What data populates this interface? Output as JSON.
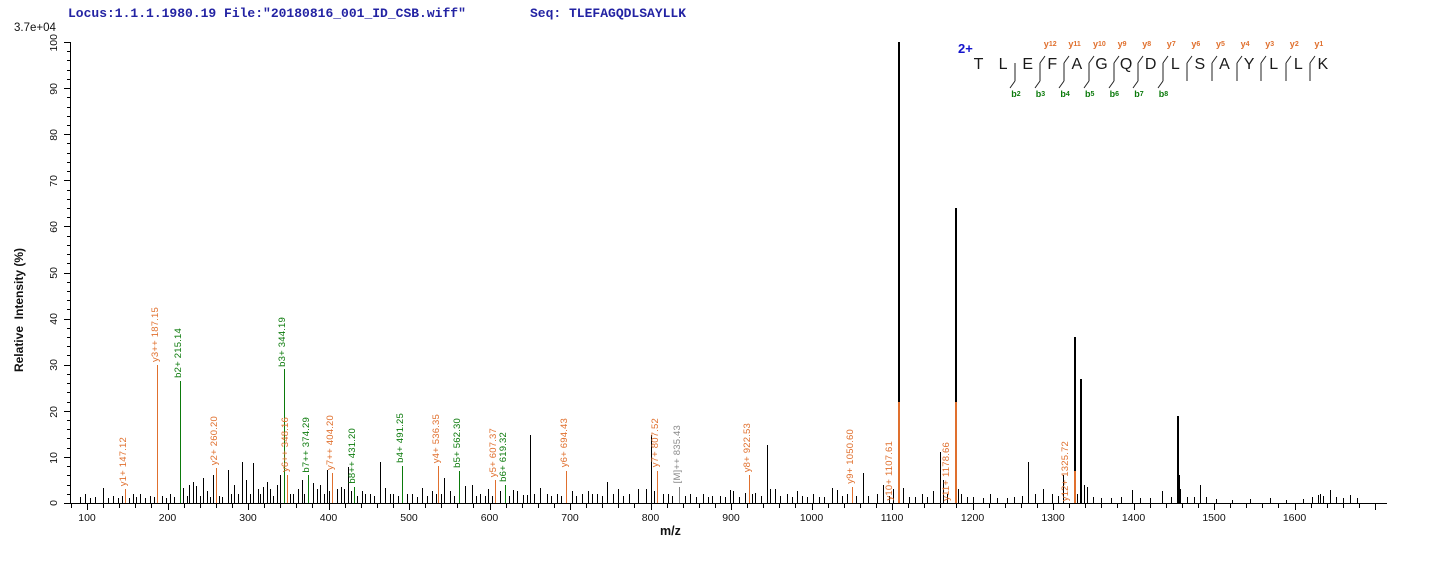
{
  "header": {
    "locus_file": "Locus:1.1.1.1980.19 File:\"20180816_001_ID_CSB.wiff\"",
    "seq_label": "Seq: TLEFAGQDLSAYLLK",
    "max_intensity": "3.7e+04",
    "header_color": "#2323a3"
  },
  "colors": {
    "y_ion": "#e0702e",
    "b_ion": "#0b7a0b",
    "neutral": "#7f7f7f",
    "peak": "#000000",
    "charge_blue": "#1414cc"
  },
  "chart_data": {
    "type": "bar",
    "subtype": "ms2-fragmentation-spectrum",
    "title": "",
    "xlabel": "m/z",
    "ylabel": "Relative  Intensity (%)",
    "xlim": [
      79,
      1715
    ],
    "ylim": [
      0,
      100
    ],
    "x_major_tick_step": 100,
    "x_minor_tick_step": 20,
    "x_tick_labels": [
      100,
      200,
      300,
      400,
      500,
      600,
      700,
      800,
      900,
      1000,
      1100,
      1200,
      1300,
      1400,
      1500,
      1600
    ],
    "y_major_tick_step": 10,
    "y_minor_tick_step": 2,
    "y_tick_labels": [
      0,
      10,
      20,
      30,
      40,
      50,
      60,
      70,
      80,
      90,
      100
    ],
    "grid": false,
    "precursor_charge": "2+",
    "peptide": {
      "sequence": "TLEFAGQDLSAYLLK",
      "b_ions": [
        2,
        3,
        4,
        5,
        6,
        7,
        8
      ],
      "y_ions": [
        1,
        2,
        3,
        4,
        5,
        6,
        7,
        8,
        9,
        10,
        11,
        12
      ]
    },
    "labeled_peaks": [
      {
        "label": "y1+ 147.12",
        "mz": 147.12,
        "pct": 3,
        "type": "y"
      },
      {
        "label": "y3++ 187.15",
        "mz": 187.15,
        "pct": 30,
        "type": "y"
      },
      {
        "label": "b2+ 215.14",
        "mz": 215.14,
        "pct": 26.5,
        "type": "b"
      },
      {
        "label": "y2+ 260.20",
        "mz": 260.2,
        "pct": 7.5,
        "type": "y"
      },
      {
        "label": "b3+ 344.19",
        "mz": 344.19,
        "pct": 29,
        "type": "b"
      },
      {
        "label": "y6++ 348.16",
        "mz": 348.16,
        "pct": 6,
        "type": "y"
      },
      {
        "label": "b7++ 374.29",
        "mz": 374.29,
        "pct": 6,
        "type": "b"
      },
      {
        "label": "y7++ 404.20",
        "mz": 404.2,
        "pct": 6.5,
        "type": "y"
      },
      {
        "label": "b8++ 431.20",
        "mz": 431.2,
        "pct": 3.5,
        "type": "b"
      },
      {
        "label": "b4+ 491.25",
        "mz": 491.25,
        "pct": 8,
        "type": "b"
      },
      {
        "label": "y4+ 536.35",
        "mz": 536.35,
        "pct": 8,
        "type": "y"
      },
      {
        "label": "b5+ 562.30",
        "mz": 562.3,
        "pct": 7,
        "type": "b"
      },
      {
        "label": "y5+ 607.37",
        "mz": 607.37,
        "pct": 5,
        "type": "y"
      },
      {
        "label": "b6+ 619.32",
        "mz": 619.32,
        "pct": 4,
        "type": "b"
      },
      {
        "label": "y6+ 694.43",
        "mz": 694.43,
        "pct": 7,
        "type": "y"
      },
      {
        "label": "y7+ 807.52",
        "mz": 807.52,
        "pct": 7,
        "type": "y"
      },
      {
        "label": "[M]++ 835.43",
        "mz": 835.43,
        "pct": 3.5,
        "type": "M"
      },
      {
        "label": "y8+ 922.53",
        "mz": 922.53,
        "pct": 6,
        "type": "y"
      },
      {
        "label": "y9+ 1050.60",
        "mz": 1050.6,
        "pct": 3.5,
        "type": "y"
      },
      {
        "label": "y10+ 1107.61",
        "mz": 1107.61,
        "pct": 100,
        "type": "y",
        "overlay_pct": 22,
        "label_side": "left"
      },
      {
        "label": "y11+ 1178.66",
        "mz": 1178.66,
        "pct": 64,
        "type": "y",
        "overlay_pct": 22,
        "label_side": "left"
      },
      {
        "label": "y12+ 1325.72",
        "mz": 1325.72,
        "pct": 36,
        "type": "y",
        "overlay_pct": 7,
        "label_side": "left"
      }
    ],
    "background_peaks": [
      [
        91,
        1.2
      ],
      [
        98,
        2
      ],
      [
        104,
        1
      ],
      [
        110,
        1.3
      ],
      [
        120,
        3.3
      ],
      [
        126,
        1
      ],
      [
        132,
        1.5
      ],
      [
        138,
        1
      ],
      [
        143,
        1.5
      ],
      [
        152,
        1
      ],
      [
        157,
        2
      ],
      [
        161,
        1.2
      ],
      [
        166,
        2
      ],
      [
        172,
        1
      ],
      [
        178,
        1.5
      ],
      [
        183,
        1.2
      ],
      [
        193,
        1.5
      ],
      [
        198,
        1
      ],
      [
        203,
        2
      ],
      [
        208,
        1.2
      ],
      [
        219,
        3.2
      ],
      [
        224,
        1.5
      ],
      [
        227,
        3.9
      ],
      [
        232,
        4.6
      ],
      [
        235,
        3.6
      ],
      [
        240,
        1.5
      ],
      [
        244,
        5.4
      ],
      [
        249,
        2.5
      ],
      [
        253,
        1.2
      ],
      [
        257,
        6.1
      ],
      [
        264,
        1.5
      ],
      [
        268,
        1.2
      ],
      [
        275,
        7.2
      ],
      [
        279,
        2
      ],
      [
        283,
        4
      ],
      [
        288,
        2
      ],
      [
        292,
        9
      ],
      [
        298,
        5
      ],
      [
        302,
        2
      ],
      [
        306,
        8.6
      ],
      [
        312,
        3
      ],
      [
        315,
        2
      ],
      [
        319,
        3.5
      ],
      [
        323,
        4.5
      ],
      [
        327,
        3
      ],
      [
        331,
        1.5
      ],
      [
        336,
        3.9
      ],
      [
        340,
        6.1
      ],
      [
        352,
        2
      ],
      [
        356,
        2
      ],
      [
        362,
        3
      ],
      [
        367,
        5
      ],
      [
        370,
        2
      ],
      [
        381,
        4.3
      ],
      [
        386,
        3
      ],
      [
        390,
        4
      ],
      [
        394,
        2
      ],
      [
        398,
        7.2
      ],
      [
        401,
        2.5
      ],
      [
        410,
        3
      ],
      [
        415,
        3.5
      ],
      [
        419,
        3
      ],
      [
        424,
        7.9
      ],
      [
        428,
        2.5
      ],
      [
        435,
        1.5
      ],
      [
        441,
        2.5
      ],
      [
        445,
        2
      ],
      [
        451,
        2
      ],
      [
        456,
        1.5
      ],
      [
        464,
        9
      ],
      [
        470,
        3.2
      ],
      [
        476,
        2
      ],
      [
        480,
        2
      ],
      [
        486,
        1.5
      ],
      [
        497,
        2
      ],
      [
        504,
        2
      ],
      [
        510,
        1.2
      ],
      [
        516,
        3.2
      ],
      [
        522,
        1.5
      ],
      [
        529,
        2.5
      ],
      [
        533,
        2
      ],
      [
        540,
        2
      ],
      [
        544,
        5.4
      ],
      [
        551,
        2.5
      ],
      [
        556,
        1.5
      ],
      [
        570,
        3.6
      ],
      [
        578,
        3.9
      ],
      [
        583,
        1.5
      ],
      [
        588,
        2
      ],
      [
        594,
        1.5
      ],
      [
        598,
        3
      ],
      [
        603,
        1.5
      ],
      [
        613,
        2.5
      ],
      [
        624,
        1.5
      ],
      [
        629,
        2.8
      ],
      [
        634,
        2.5
      ],
      [
        641,
        1.7
      ],
      [
        646,
        1.7
      ],
      [
        650,
        14.8
      ],
      [
        655,
        2
      ],
      [
        663,
        3.2
      ],
      [
        671,
        2
      ],
      [
        676,
        1.5
      ],
      [
        684,
        2
      ],
      [
        689,
        1.5
      ],
      [
        702,
        2.5
      ],
      [
        708,
        1.5
      ],
      [
        715,
        2
      ],
      [
        722,
        2.5
      ],
      [
        727,
        2
      ],
      [
        733,
        2
      ],
      [
        740,
        1.5
      ],
      [
        746,
        4.6
      ],
      [
        753,
        2
      ],
      [
        760,
        3
      ],
      [
        766,
        1.5
      ],
      [
        773,
        2
      ],
      [
        785,
        3
      ],
      [
        794,
        3
      ],
      [
        800,
        14.8
      ],
      [
        804,
        2.5
      ],
      [
        816,
        2
      ],
      [
        822,
        2
      ],
      [
        827,
        1.5
      ],
      [
        843,
        1.5
      ],
      [
        849,
        2
      ],
      [
        856,
        1.2
      ],
      [
        865,
        2
      ],
      [
        871,
        1.3
      ],
      [
        876,
        1.5
      ],
      [
        886,
        1.5
      ],
      [
        892,
        1.2
      ],
      [
        899,
        2.8
      ],
      [
        903,
        2.5
      ],
      [
        910,
        1.3
      ],
      [
        917,
        2.1
      ],
      [
        926,
        2
      ],
      [
        930,
        2.2
      ],
      [
        937,
        1.5
      ],
      [
        945,
        12.6
      ],
      [
        948,
        3
      ],
      [
        955,
        3
      ],
      [
        961,
        1.5
      ],
      [
        970,
        2
      ],
      [
        976,
        1.4
      ],
      [
        982,
        2.5
      ],
      [
        988,
        1.5
      ],
      [
        995,
        1.3
      ],
      [
        1002,
        2
      ],
      [
        1009,
        1.2
      ],
      [
        1016,
        1.4
      ],
      [
        1025,
        3.2
      ],
      [
        1032,
        2.8
      ],
      [
        1038,
        1.5
      ],
      [
        1044,
        2
      ],
      [
        1055,
        1.6
      ],
      [
        1064,
        6.4
      ],
      [
        1070,
        1.5
      ],
      [
        1081,
        2
      ],
      [
        1089,
        3.9
      ],
      [
        1096,
        1.5
      ],
      [
        1101,
        3
      ],
      [
        1109,
        2.5
      ],
      [
        1114,
        3.2
      ],
      [
        1121,
        1.3
      ],
      [
        1129,
        1.2
      ],
      [
        1137,
        2
      ],
      [
        1144,
        1.3
      ],
      [
        1151,
        2.5
      ],
      [
        1160,
        11
      ],
      [
        1163,
        5
      ],
      [
        1168,
        2
      ],
      [
        1182,
        3
      ],
      [
        1186,
        2
      ],
      [
        1193,
        1.3
      ],
      [
        1201,
        1.2
      ],
      [
        1213,
        1
      ],
      [
        1222,
        2
      ],
      [
        1231,
        1
      ],
      [
        1243,
        1
      ],
      [
        1252,
        1.2
      ],
      [
        1262,
        1.5
      ],
      [
        1269,
        9
      ],
      [
        1278,
        2
      ],
      [
        1288,
        3
      ],
      [
        1299,
        2
      ],
      [
        1306,
        1.5
      ],
      [
        1313,
        6
      ],
      [
        1330,
        2
      ],
      [
        1334,
        27
      ],
      [
        1339,
        4
      ],
      [
        1342,
        3.5
      ],
      [
        1350,
        1.3
      ],
      [
        1360,
        1
      ],
      [
        1372,
        1
      ],
      [
        1385,
        1.2
      ],
      [
        1398,
        2.8
      ],
      [
        1408,
        1
      ],
      [
        1420,
        1
      ],
      [
        1435,
        2.7
      ],
      [
        1446,
        1.2
      ],
      [
        1454,
        18.9
      ],
      [
        1456,
        6
      ],
      [
        1458,
        3
      ],
      [
        1466,
        1.3
      ],
      [
        1475,
        1.2
      ],
      [
        1483,
        4
      ],
      [
        1490,
        1.2
      ],
      [
        1502,
        0.8
      ],
      [
        1522,
        0.7
      ],
      [
        1545,
        0.8
      ],
      [
        1570,
        1
      ],
      [
        1590,
        0.7
      ],
      [
        1610,
        0.9
      ],
      [
        1622,
        1.2
      ],
      [
        1629,
        1.8
      ],
      [
        1632,
        2
      ],
      [
        1636,
        1.5
      ],
      [
        1644,
        2.8
      ],
      [
        1652,
        1.2
      ],
      [
        1660,
        1
      ],
      [
        1669,
        1.7
      ],
      [
        1678,
        1
      ]
    ]
  }
}
